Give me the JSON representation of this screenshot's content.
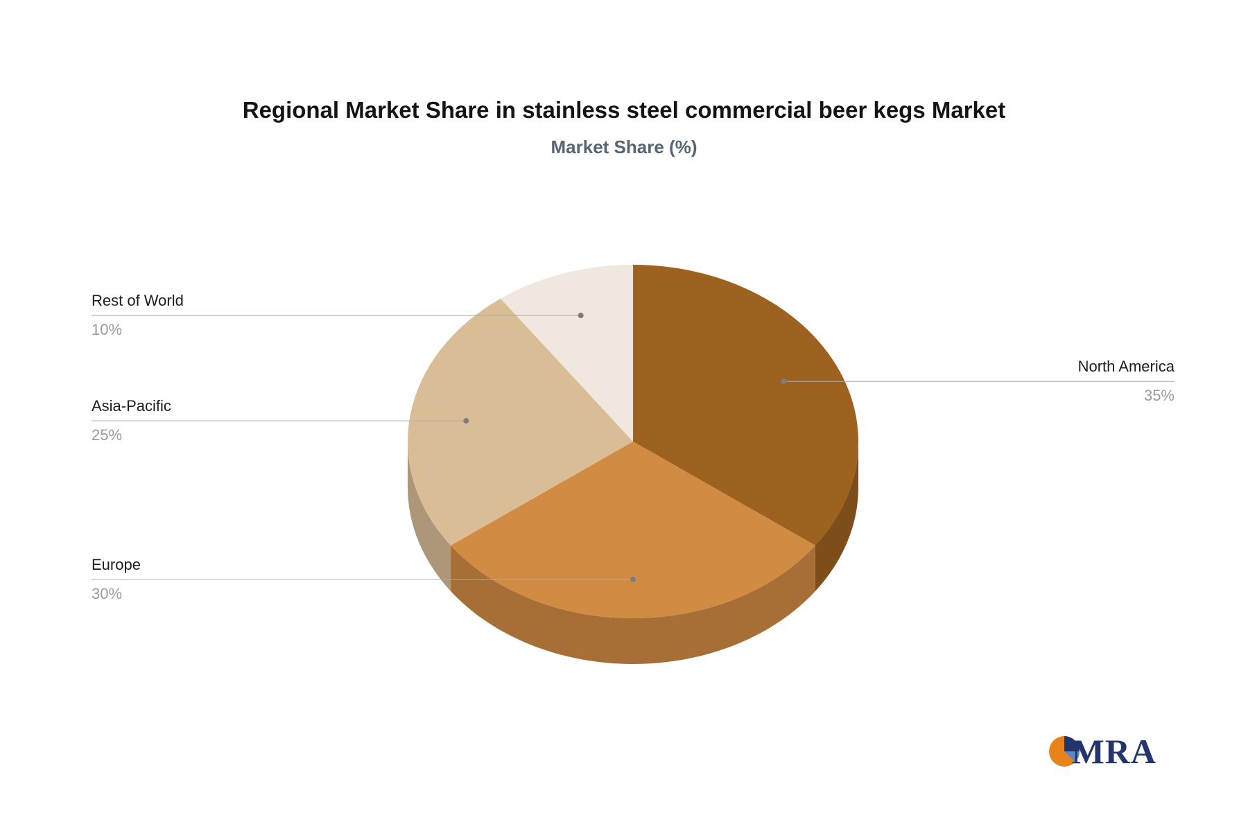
{
  "header": {
    "title": "Regional Market Share in stainless steel commercial beer kegs Market",
    "subtitle": "Market Share (%)"
  },
  "chart_data": {
    "type": "pie",
    "style": "3d",
    "title": "Regional Market Share in stainless steel commercial beer kegs Market",
    "subtitle": "Market Share (%)",
    "unit": "%",
    "start_angle_deg": -90,
    "direction": "clockwise",
    "legend_position": "outside-leader-lines",
    "slices": [
      {
        "label": "North America",
        "value": 35,
        "display": "35%",
        "color": "#9d6120"
      },
      {
        "label": "Europe",
        "value": 30,
        "display": "30%",
        "color": "#d18b43"
      },
      {
        "label": "Asia-Pacific",
        "value": 25,
        "display": "25%",
        "color": "#d9bd97"
      },
      {
        "label": "Rest of World",
        "value": 10,
        "display": "10%",
        "color": "#f0e8df"
      }
    ],
    "leader_line_color": "#adadad",
    "leader_dot_color": "#7d7d7d"
  },
  "logo": {
    "text": "MRA",
    "icon_colors": [
      "#e8831a",
      "#23356b",
      "#5c88c4"
    ],
    "text_color": "#23356b"
  }
}
